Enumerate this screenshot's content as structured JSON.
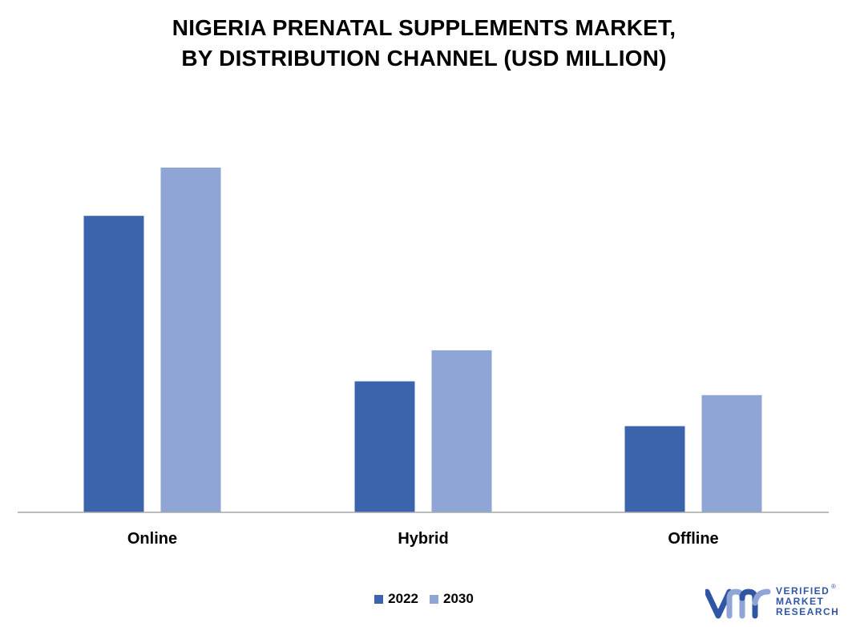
{
  "chart_data": {
    "type": "bar",
    "title_lines": [
      "NIGERIA PRENATAL SUPPLEMENTS MARKET,",
      "BY DISTRIBUTION CHANNEL (USD MILLION)"
    ],
    "categories": [
      "Online",
      "Hybrid",
      "Offline"
    ],
    "series": [
      {
        "name": "2022",
        "values": [
          8.6,
          3.8,
          2.5
        ],
        "color": "#3b64ad"
      },
      {
        "name": "2030",
        "values": [
          10.0,
          4.7,
          3.4
        ],
        "color": "#8fa5d6"
      }
    ],
    "ylim": [
      0,
      12
    ],
    "grid": false,
    "legend_position": "bottom-center"
  },
  "logo": {
    "lines": [
      "VERIFIED",
      "MARKET",
      "RESEARCH"
    ],
    "registered": "®",
    "colors": {
      "primary": "#2f55a4",
      "accent": "#8fa5d6"
    }
  }
}
